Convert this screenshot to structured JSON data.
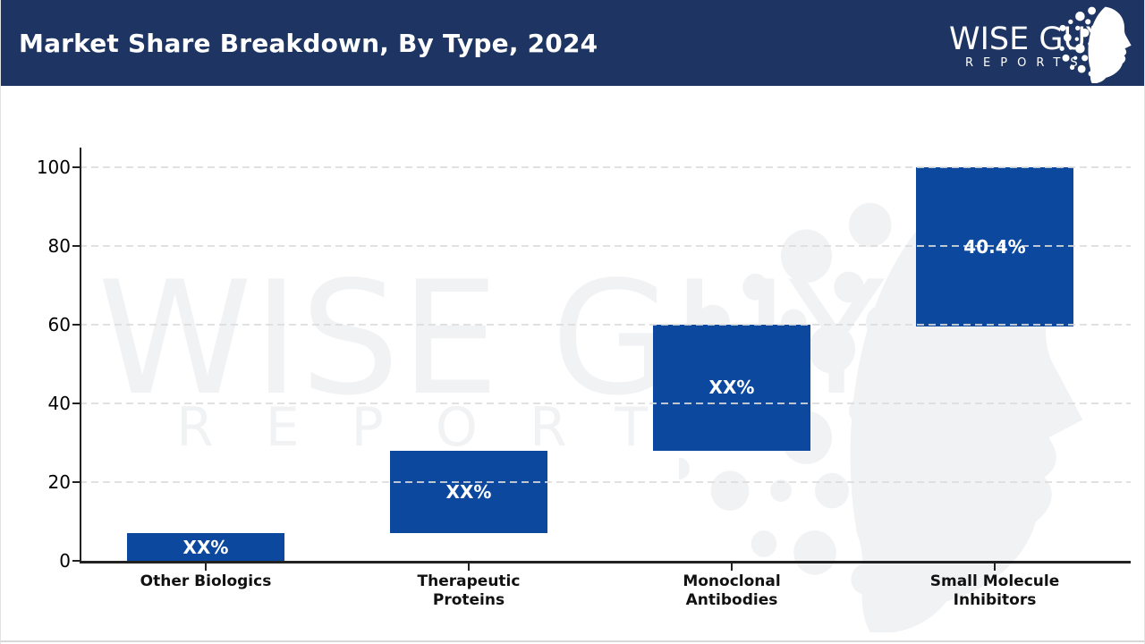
{
  "header": {
    "title": "Market Share Breakdown, By Type, 2024",
    "bg_color": "#1e3563",
    "logo_line1": "WISE GUY",
    "logo_line2": "REPORTS"
  },
  "watermark": {
    "line1": "WISE GUY",
    "line2": "REPORTS"
  },
  "colors": {
    "header_bg": "#1e3563",
    "bar": "#0c499e",
    "grid": "#dcdcdc",
    "axis": "#222222",
    "watermark": "#f1f2f4"
  },
  "chart_data": {
    "type": "bar",
    "variant": "waterfall",
    "title": "Market Share Breakdown, By Type, 2024",
    "categories": [
      "Other Biologics",
      "Therapeutic Proteins",
      "Monoclonal Antibodies",
      "Small Molecule Inhibitors"
    ],
    "category_label_lines": [
      [
        "Other Biologics"
      ],
      [
        "Therapeutic",
        "Proteins"
      ],
      [
        "Monoclonal",
        "Antibodies"
      ],
      [
        "Small Molecule",
        "Inhibitors"
      ]
    ],
    "bars": [
      {
        "category": "Other Biologics",
        "start": 0,
        "end": 7,
        "label": "XX%"
      },
      {
        "category": "Therapeutic Proteins",
        "start": 7,
        "end": 28,
        "label": "XX%"
      },
      {
        "category": "Monoclonal Antibodies",
        "start": 28,
        "end": 60,
        "label": "XX%"
      },
      {
        "category": "Small Molecule Inhibitors",
        "start": 59.6,
        "end": 100,
        "label": "40.4%"
      }
    ],
    "ylim": [
      0,
      100
    ],
    "yticks": [
      0,
      20,
      40,
      60,
      80,
      100
    ],
    "grid": "horizontal-dashed",
    "legend": "none",
    "bar_color": "#0c499e"
  }
}
